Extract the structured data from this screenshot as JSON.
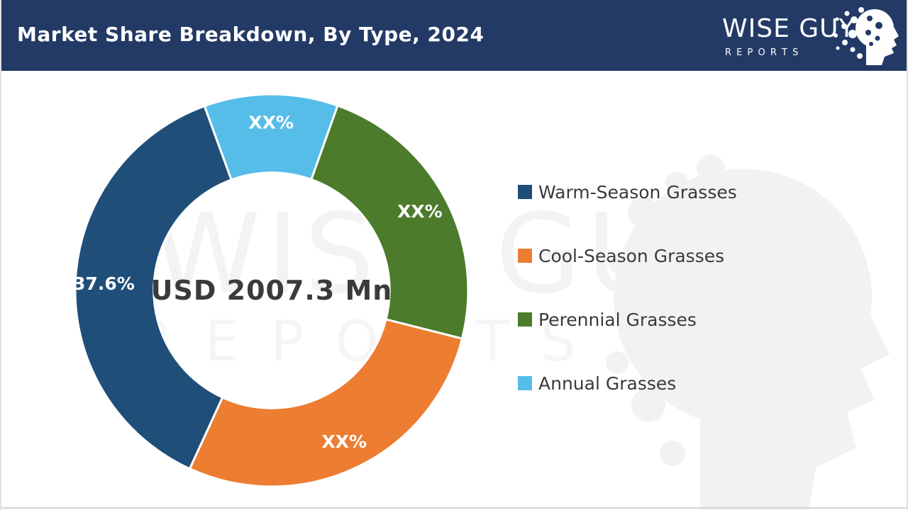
{
  "header": {
    "title": "Market Share Breakdown, By Type, 2024",
    "logo": {
      "line1": "WISE GUY",
      "line2": "R E P O R T S"
    }
  },
  "watermark": {
    "line1": "WISE GUY",
    "line2": "REPORTS"
  },
  "chart_data": {
    "type": "pie",
    "subtype": "donut",
    "title": "Market Share Breakdown, By Type, 2024",
    "center_label": "USD 2007.3 Mn",
    "unit": "%",
    "start_angle_deg": 110,
    "direction": "counterclockwise",
    "inner_radius_ratio": 0.6,
    "label_radius_ratio": 0.855,
    "legend_position": "right",
    "series": [
      {
        "name": "Warm-Season Grasses",
        "value": 37.6,
        "display_label": "37.6%",
        "color": "#1F4E79"
      },
      {
        "name": "Cool-Season Grasses",
        "value": 27.9,
        "display_label": "XX%",
        "color": "#ED7D31"
      },
      {
        "name": "Perennial Grasses",
        "value": 23.5,
        "display_label": "XX%",
        "color": "#4C7B2B"
      },
      {
        "name": "Annual Grasses",
        "value": 11.0,
        "display_label": "XX%",
        "color": "#56BDE8"
      }
    ]
  },
  "colors": {
    "header_background": "#233a66",
    "segment_gap_stroke": "#ffffff",
    "center_text": "#3a3a3a",
    "legend_text": "#3a3a3a",
    "watermark": "#f3f3f3",
    "footer_line": "#d4d4d4"
  }
}
